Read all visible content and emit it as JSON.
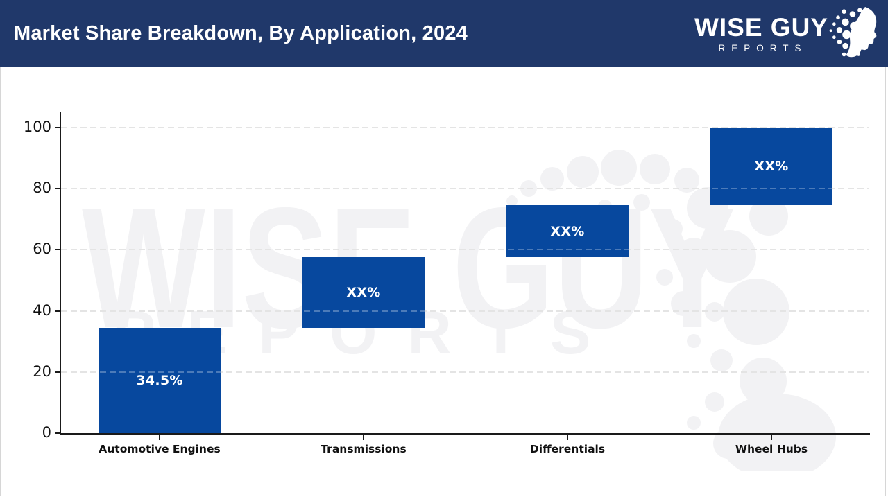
{
  "header": {
    "title": "Market Share Breakdown, By Application, 2024",
    "brand": {
      "name": "WISE GUY",
      "tagline": "REPORTS"
    }
  },
  "watermark": {
    "line1": "WISE GUY",
    "line2": "REPORTS"
  },
  "chart_data": {
    "type": "bar",
    "subtype": "waterfall",
    "title": "Market Share Breakdown, By Application, 2024",
    "categories": [
      "Automotive Engines",
      "Transmissions",
      "Differentials",
      "Wheel Hubs"
    ],
    "series": [
      {
        "category": "Automotive Engines",
        "start": 0,
        "end": 34.5,
        "label": "34.5%"
      },
      {
        "category": "Transmissions",
        "start": 34.5,
        "end": 57.5,
        "label": "XX%"
      },
      {
        "category": "Differentials",
        "start": 57.5,
        "end": 74.5,
        "label": "XX%"
      },
      {
        "category": "Wheel Hubs",
        "start": 74.5,
        "end": 100,
        "label": "XX%"
      }
    ],
    "xlabel": "",
    "ylabel": "",
    "yticks": [
      0,
      20,
      40,
      60,
      80,
      100
    ],
    "ylim": [
      0,
      105
    ],
    "grid": "dashed-horizontal",
    "legend": "none",
    "colors": {
      "bar": "#07489e",
      "grid": "#d9d9d9",
      "axis": "#1a1a1a",
      "header_bg": "#20386a",
      "bar_label_text": "#ffffff",
      "watermark": "#f2f2f4"
    }
  }
}
